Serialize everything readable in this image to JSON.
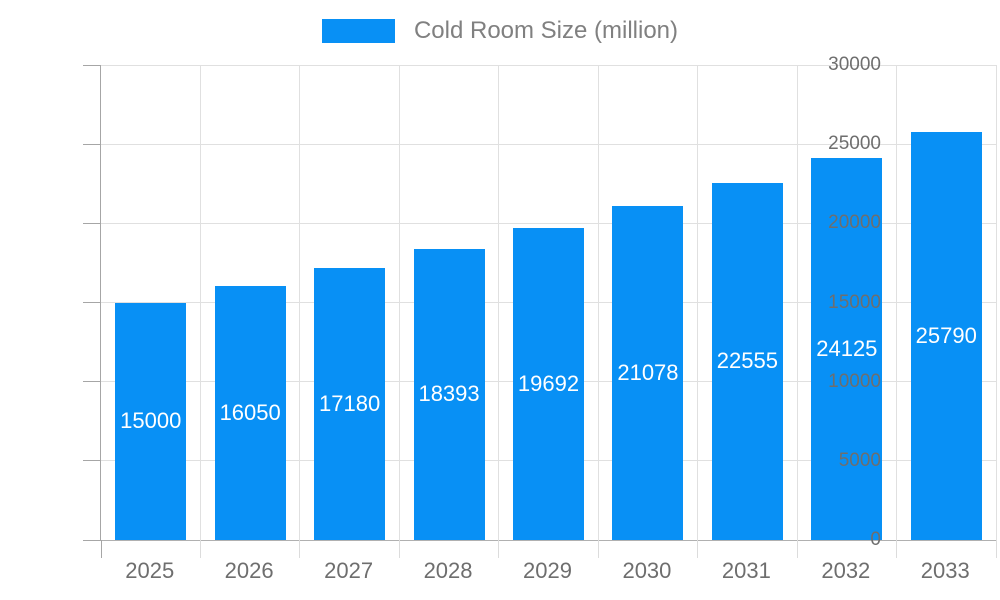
{
  "legend": {
    "label": "Cold Room Size (million)"
  },
  "chart_data": {
    "type": "bar",
    "title": "",
    "xlabel": "",
    "ylabel": "",
    "categories": [
      "2025",
      "2026",
      "2027",
      "2028",
      "2029",
      "2030",
      "2031",
      "2032",
      "2033"
    ],
    "series": [
      {
        "name": "Cold Room Size (million)",
        "values": [
          15000,
          16050,
          17180,
          18393,
          19692,
          21078,
          22555,
          24125,
          25790
        ]
      }
    ],
    "bar_value_labels": [
      "15000",
      "16050",
      "17180",
      "18393",
      "19692",
      "21078",
      "22555",
      "24125",
      "25790"
    ],
    "ylim": [
      0,
      30000
    ],
    "ytick_values": [
      0,
      5000,
      10000,
      15000,
      20000,
      25000,
      30000
    ],
    "ytick_labels": [
      "0",
      "5000",
      "10000",
      "15000",
      "20000",
      "25000",
      "30000"
    ],
    "grid": true,
    "legend_position": "top-center",
    "bar_label_placement": "inside-center"
  },
  "colors": {
    "bar": "#0890f5",
    "bar_label": "#ffffff",
    "axis_line": "#a6a6a6",
    "gridline": "#e0e0e0",
    "tick_minor": "#dcdcdc",
    "axis_text": "#6e6e6e",
    "legend_text": "#808080",
    "background": "#ffffff"
  }
}
